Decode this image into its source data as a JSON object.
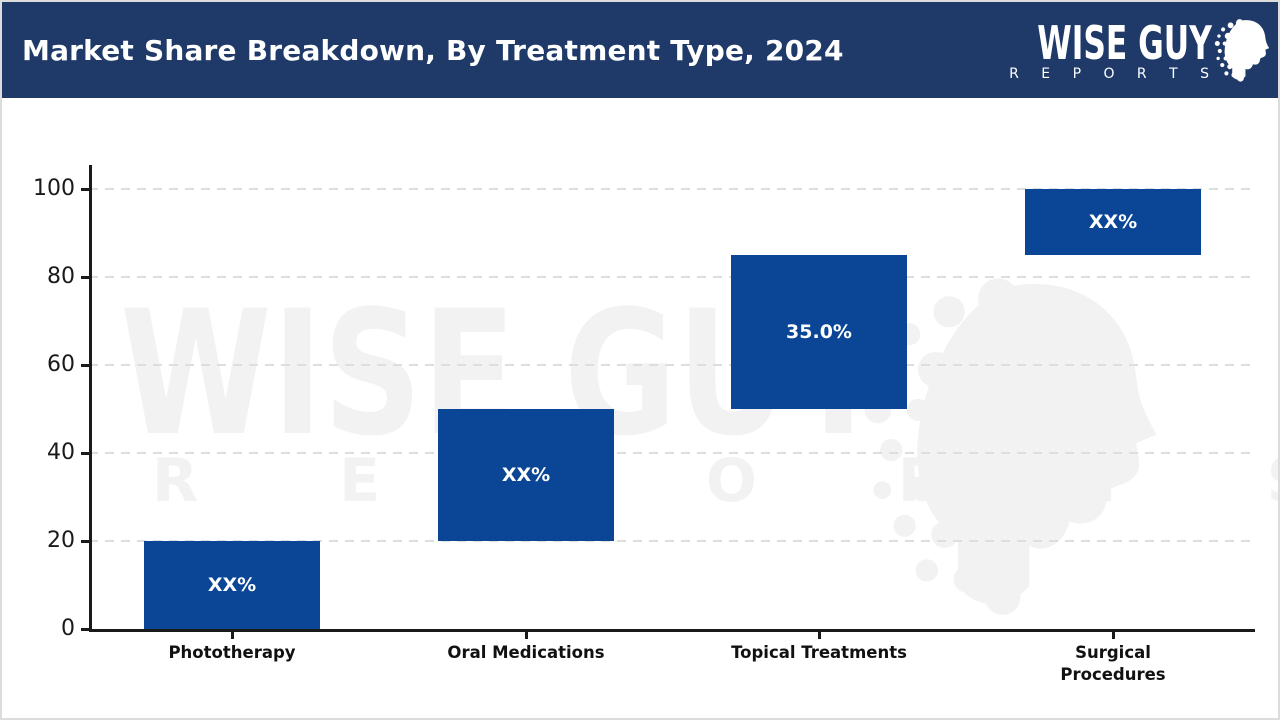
{
  "header": {
    "title": "Market Share Breakdown, By Treatment Type, 2024",
    "logo": {
      "line1": "WISE GUY",
      "line2": "R E P O R T S"
    }
  },
  "watermark": {
    "line1": "WISE GUY",
    "line2": "R E P O R T S"
  },
  "colors": {
    "header_bg": "#1f3a68",
    "bar": "#0a4596",
    "bar_label": "#ffffff",
    "grid": "#dedede",
    "axis": "#1a1a1a",
    "watermark": "#f2f2f2",
    "page_border": "#dcdcdc"
  },
  "chart_data": {
    "type": "bar",
    "subtype": "floating-waterfall",
    "title": "Market Share Breakdown, By Treatment Type, 2024",
    "categories": [
      "Phototherapy",
      "Oral Medications",
      "Topical Treatments",
      "Surgical Procedures"
    ],
    "category_display": [
      "Phototherapy",
      "Oral Medications",
      "Topical Treatments",
      "Surgical\nProcedures"
    ],
    "series": [
      {
        "name": "Market Share (%)",
        "segments": [
          {
            "category": "Phototherapy",
            "start": 0,
            "end": 20,
            "label": "XX%"
          },
          {
            "category": "Oral Medications",
            "start": 20,
            "end": 50,
            "label": "XX%"
          },
          {
            "category": "Topical Treatments",
            "start": 50,
            "end": 85,
            "label": "35.0%"
          },
          {
            "category": "Surgical Procedures",
            "start": 85,
            "end": 100,
            "label": "XX%"
          }
        ]
      }
    ],
    "yticks": [
      0,
      20,
      40,
      60,
      80,
      100
    ],
    "ylim": [
      0,
      105
    ],
    "xlabel": "",
    "ylabel": "",
    "grid": "horizontal-dashed",
    "legend": "none",
    "bar_color": "#0a4596",
    "bar_label_color": "#ffffff"
  }
}
